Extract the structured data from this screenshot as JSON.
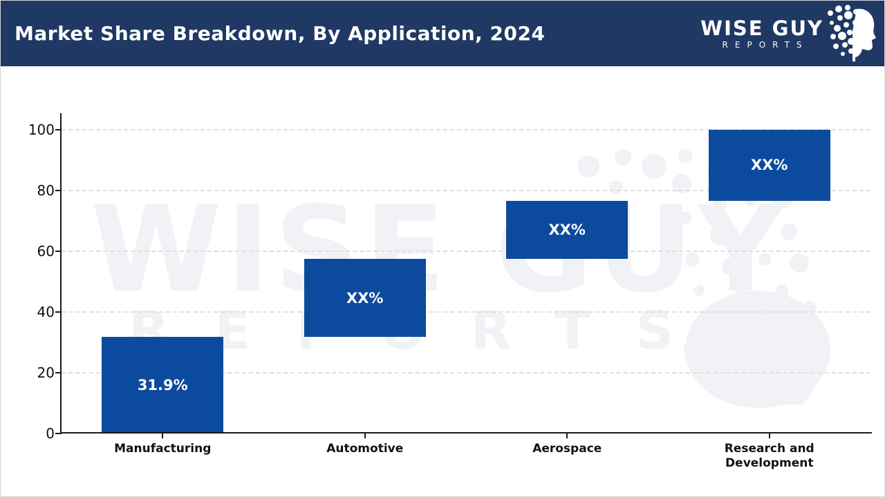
{
  "header": {
    "title": "Market Share Breakdown, By Application, 2024",
    "logo": {
      "line1": "WISE GUY",
      "line2": "REPORTS"
    }
  },
  "watermark": {
    "line1": "WISE GUY",
    "line2": "REPORTS"
  },
  "chart_data": {
    "type": "bar",
    "subtype": "waterfall",
    "title": "Market Share Breakdown, By Application, 2024",
    "xlabel": "",
    "ylabel": "",
    "ylim": [
      0,
      100
    ],
    "yticks": [
      0,
      20,
      40,
      60,
      80,
      100
    ],
    "grid": "horizontal-dashed",
    "legend": "none",
    "categories": [
      "Manufacturing",
      "Automotive",
      "Aerospace",
      "Research and Development"
    ],
    "segments": [
      {
        "category": "Manufacturing",
        "start": 0,
        "end": 31.9,
        "label": "31.9%"
      },
      {
        "category": "Automotive",
        "start": 31.9,
        "end": 57.4,
        "label": "XX%"
      },
      {
        "category": "Aerospace",
        "start": 57.4,
        "end": 76.6,
        "label": "XX%"
      },
      {
        "category": "Research and Development",
        "start": 76.6,
        "end": 100,
        "label": "XX%"
      }
    ]
  },
  "colors": {
    "header_bg": "#1f3864",
    "bar": "#0c4a9e",
    "watermark": "#f1f2f5",
    "grid": "#dedede",
    "axis": "#1a1a1a",
    "page_border": "#d8d8d8"
  }
}
